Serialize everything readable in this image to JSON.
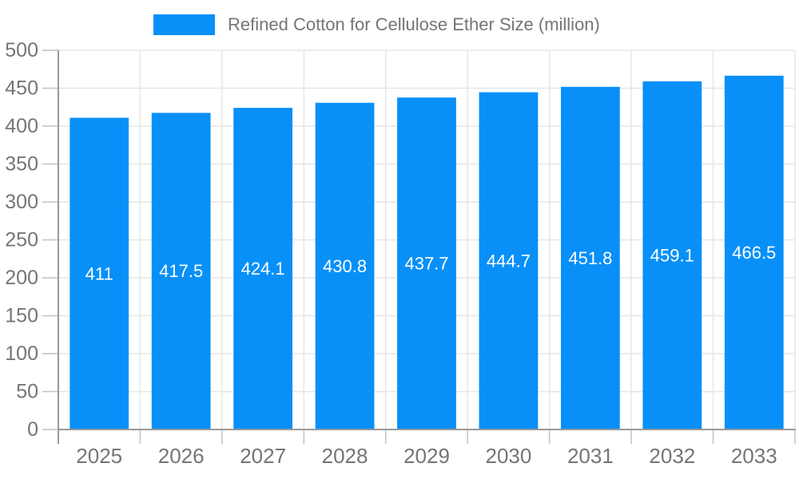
{
  "legend": {
    "label": "Refined Cotton for Cellulose Ether Size (million)"
  },
  "chart_data": {
    "type": "bar",
    "title": "Refined Cotton for Cellulose Ether Size (million)",
    "categories": [
      "2025",
      "2026",
      "2027",
      "2028",
      "2029",
      "2030",
      "2031",
      "2032",
      "2033"
    ],
    "series": [
      {
        "name": "Refined Cotton for Cellulose Ether Size (million)",
        "values": [
          411,
          417.5,
          424.1,
          430.8,
          437.7,
          444.7,
          451.8,
          459.1,
          466.5
        ]
      }
    ],
    "bar_value_labels": [
      "411",
      "417.5",
      "424.1",
      "430.8",
      "437.7",
      "444.7",
      "451.8",
      "459.1",
      "466.5"
    ],
    "xlabel": "",
    "ylabel": "",
    "ylim": [
      0,
      500
    ],
    "ytick_step": 50,
    "grid": true,
    "legend_position": "top-center",
    "colors": {
      "bar": "#0890f8",
      "grid": "#e6e6e6",
      "axis": "#9a9a9a",
      "tick_line": "#c2c2c2",
      "axis_label": "#757575",
      "bar_label": "#ffffff",
      "legend_label": "#757575"
    }
  }
}
